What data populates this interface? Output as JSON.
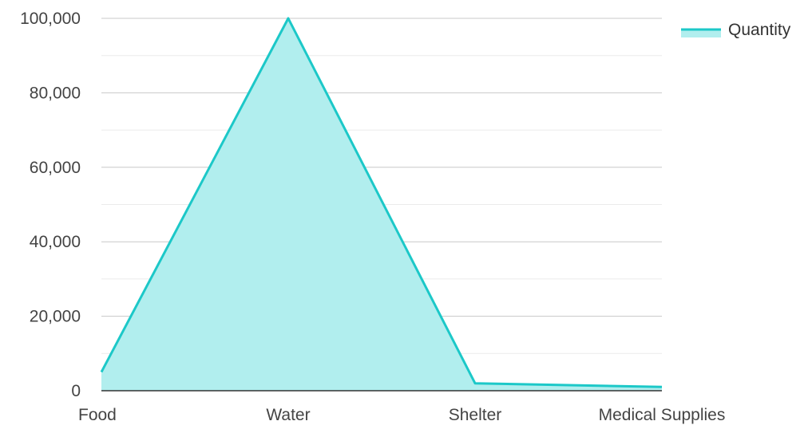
{
  "chart_data": {
    "type": "area",
    "categories": [
      "Food",
      "Water",
      "Shelter",
      "Medical Supplies"
    ],
    "series": [
      {
        "name": "Quantity",
        "values": [
          5000,
          100000,
          2000,
          1000
        ]
      }
    ],
    "ylim": [
      0,
      100000
    ],
    "y_ticks": [
      "0",
      "20,000",
      "40,000",
      "60,000",
      "80,000",
      "100,000"
    ],
    "y_tick_values": [
      0,
      20000,
      40000,
      60000,
      80000,
      100000
    ],
    "minor_gridlines": [
      10000,
      30000,
      50000,
      70000,
      90000
    ],
    "grid": true,
    "legend": "top-right",
    "colors": {
      "line": "#1cc8c8",
      "fill": "#b1eeee",
      "grid_major": "#c8c8c8",
      "grid_minor": "#ebebeb",
      "axis": "#333333"
    }
  }
}
